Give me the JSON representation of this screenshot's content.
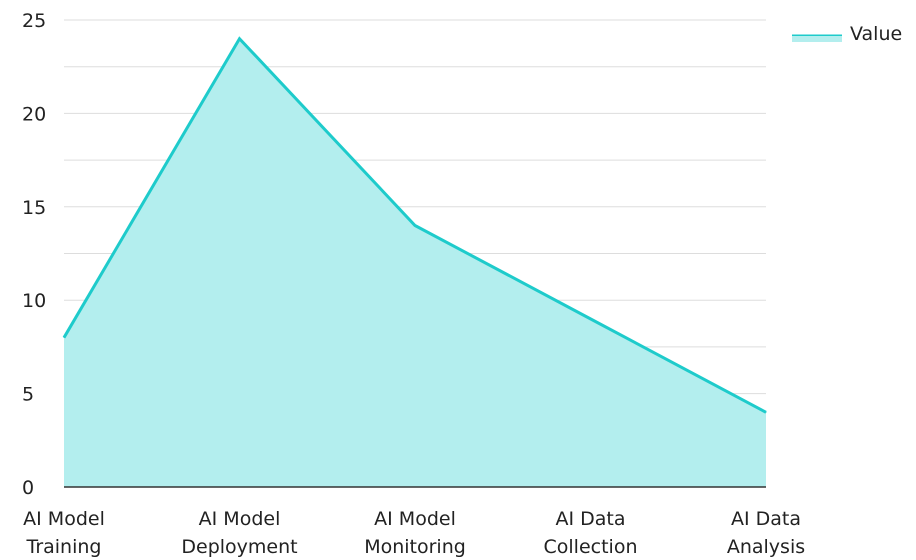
{
  "chart_data": {
    "type": "area",
    "categories": [
      [
        "AI Model",
        "Training"
      ],
      [
        "AI Model",
        "Deployment"
      ],
      [
        "AI Model",
        "Monitoring"
      ],
      [
        "AI Data",
        "Collection"
      ],
      [
        "AI Data",
        "Analysis"
      ]
    ],
    "series": [
      {
        "name": "Value",
        "values": [
          8,
          24,
          14,
          9,
          4
        ]
      }
    ],
    "ylim": [
      0,
      25
    ],
    "yticks": [
      "0",
      "5",
      "10",
      "15",
      "20",
      "25"
    ],
    "xlabel": "",
    "ylabel": "",
    "grid": true,
    "legend_position": "top-right",
    "colors": {
      "line": "#1ecbcb",
      "fill": "#b3eeee",
      "grid": "#dddddd",
      "axis": "#333333"
    }
  }
}
